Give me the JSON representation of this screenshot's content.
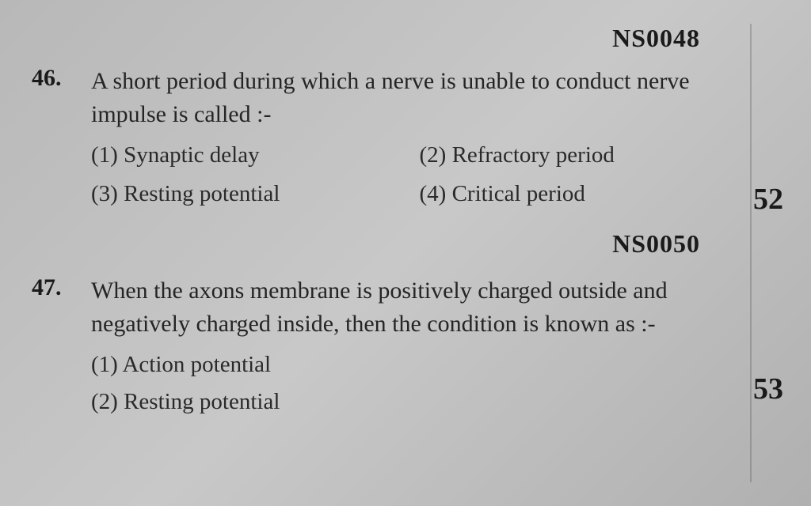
{
  "page": {
    "background_color": "#c0c0c0",
    "text_color": "#2a2a2a",
    "font_family": "Georgia, serif"
  },
  "codes": {
    "top": "NS0048",
    "mid": "NS0050"
  },
  "margin_numbers": {
    "first": "52",
    "second": "53"
  },
  "questions": [
    {
      "number": "46.",
      "text": "A short period during which a nerve is unable to conduct nerve impulse is called :-",
      "options": {
        "opt1": "(1) Synaptic delay",
        "opt2": "(2) Refractory period",
        "opt3": "(3) Resting potential",
        "opt4": "(4) Critical period"
      }
    },
    {
      "number": "47.",
      "text": "When the axons membrane is positively charged outside and negatively charged inside, then the condition is known as :-",
      "options": {
        "opt1": "(1) Action potential",
        "opt2": "(2) Resting potential"
      }
    }
  ]
}
